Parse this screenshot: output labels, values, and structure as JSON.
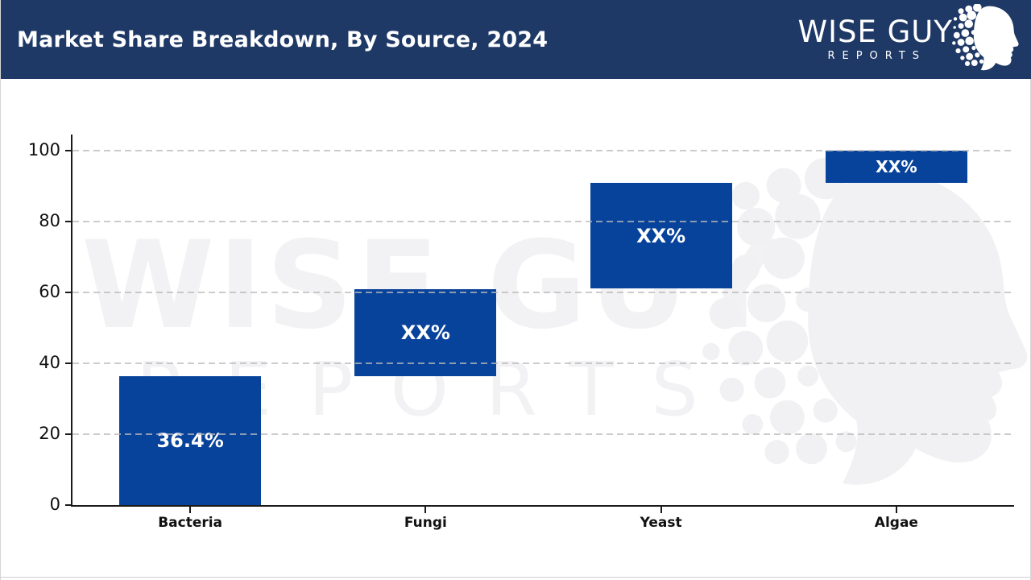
{
  "header": {
    "title": "Market Share Breakdown, By Source, 2024",
    "logo": {
      "line1": "WISE GUY",
      "line2": "REPORTS"
    }
  },
  "watermark": {
    "line1": "WISE GUY",
    "line2": "REPORTS"
  },
  "chart_data": {
    "type": "bar",
    "subtype": "waterfall",
    "title": "Market Share Breakdown, By Source, 2024",
    "categories": [
      "Bacteria",
      "Fungi",
      "Yeast",
      "Algae"
    ],
    "segments": [
      {
        "category": "Bacteria",
        "start": 0,
        "end": 36.4,
        "label": "36.4%"
      },
      {
        "category": "Fungi",
        "start": 36.4,
        "end": 61.0,
        "label": "XX%"
      },
      {
        "category": "Yeast",
        "start": 61.0,
        "end": 90.8,
        "label": "XX%"
      },
      {
        "category": "Algae",
        "start": 90.8,
        "end": 100,
        "label": "XX%"
      }
    ],
    "yticks": [
      0,
      20,
      40,
      60,
      80,
      100
    ],
    "ylim": [
      0,
      104.5
    ],
    "xlabel": "",
    "ylabel": "",
    "grid": true,
    "gridline_style": "dashed",
    "bar_color": "#08439b",
    "bar_label_color": "#ffffff"
  }
}
